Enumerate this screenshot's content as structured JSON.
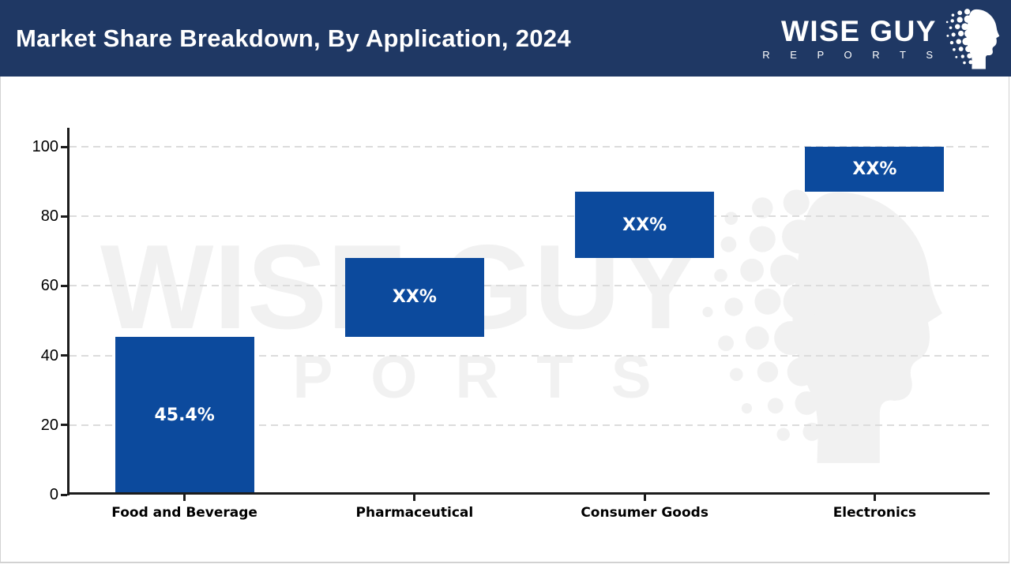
{
  "header": {
    "title": "Market Share Breakdown, By Application, 2024",
    "logo": {
      "primary": "WISE GUY",
      "secondary": "R E P O R T S"
    }
  },
  "watermark": {
    "line1": "WISE GUY",
    "line2": "REPORTS"
  },
  "colors": {
    "header_bg": "#1F3864",
    "bar": "#0C4A9D",
    "grid": "#DCDCDC",
    "axis": "#1C1C1C",
    "watermark": "#F1F1F1",
    "bar_label_text": "#FFFFFF",
    "border": "#D2D2D2"
  },
  "chart_data": {
    "type": "bar",
    "variant": "waterfall",
    "title": "Market Share Breakdown, By Application, 2024",
    "categories": [
      "Food and Beverage",
      "Pharmaceutical",
      "Consumer Goods",
      "Electronics"
    ],
    "bars": [
      {
        "category": "Food and Beverage",
        "start": 0,
        "end": 45.4,
        "label": "45.4%"
      },
      {
        "category": "Pharmaceutical",
        "start": 45.4,
        "end": 68,
        "label": "XX%"
      },
      {
        "category": "Consumer Goods",
        "start": 68,
        "end": 87,
        "label": "XX%"
      },
      {
        "category": "Electronics",
        "start": 87,
        "end": 100,
        "label": "XX%"
      }
    ],
    "ylim": [
      0,
      100
    ],
    "yticks": [
      0,
      20,
      40,
      60,
      80,
      100
    ],
    "xlabel": "",
    "ylabel": "",
    "grid": "horizontal-dashed",
    "legend": "none"
  }
}
